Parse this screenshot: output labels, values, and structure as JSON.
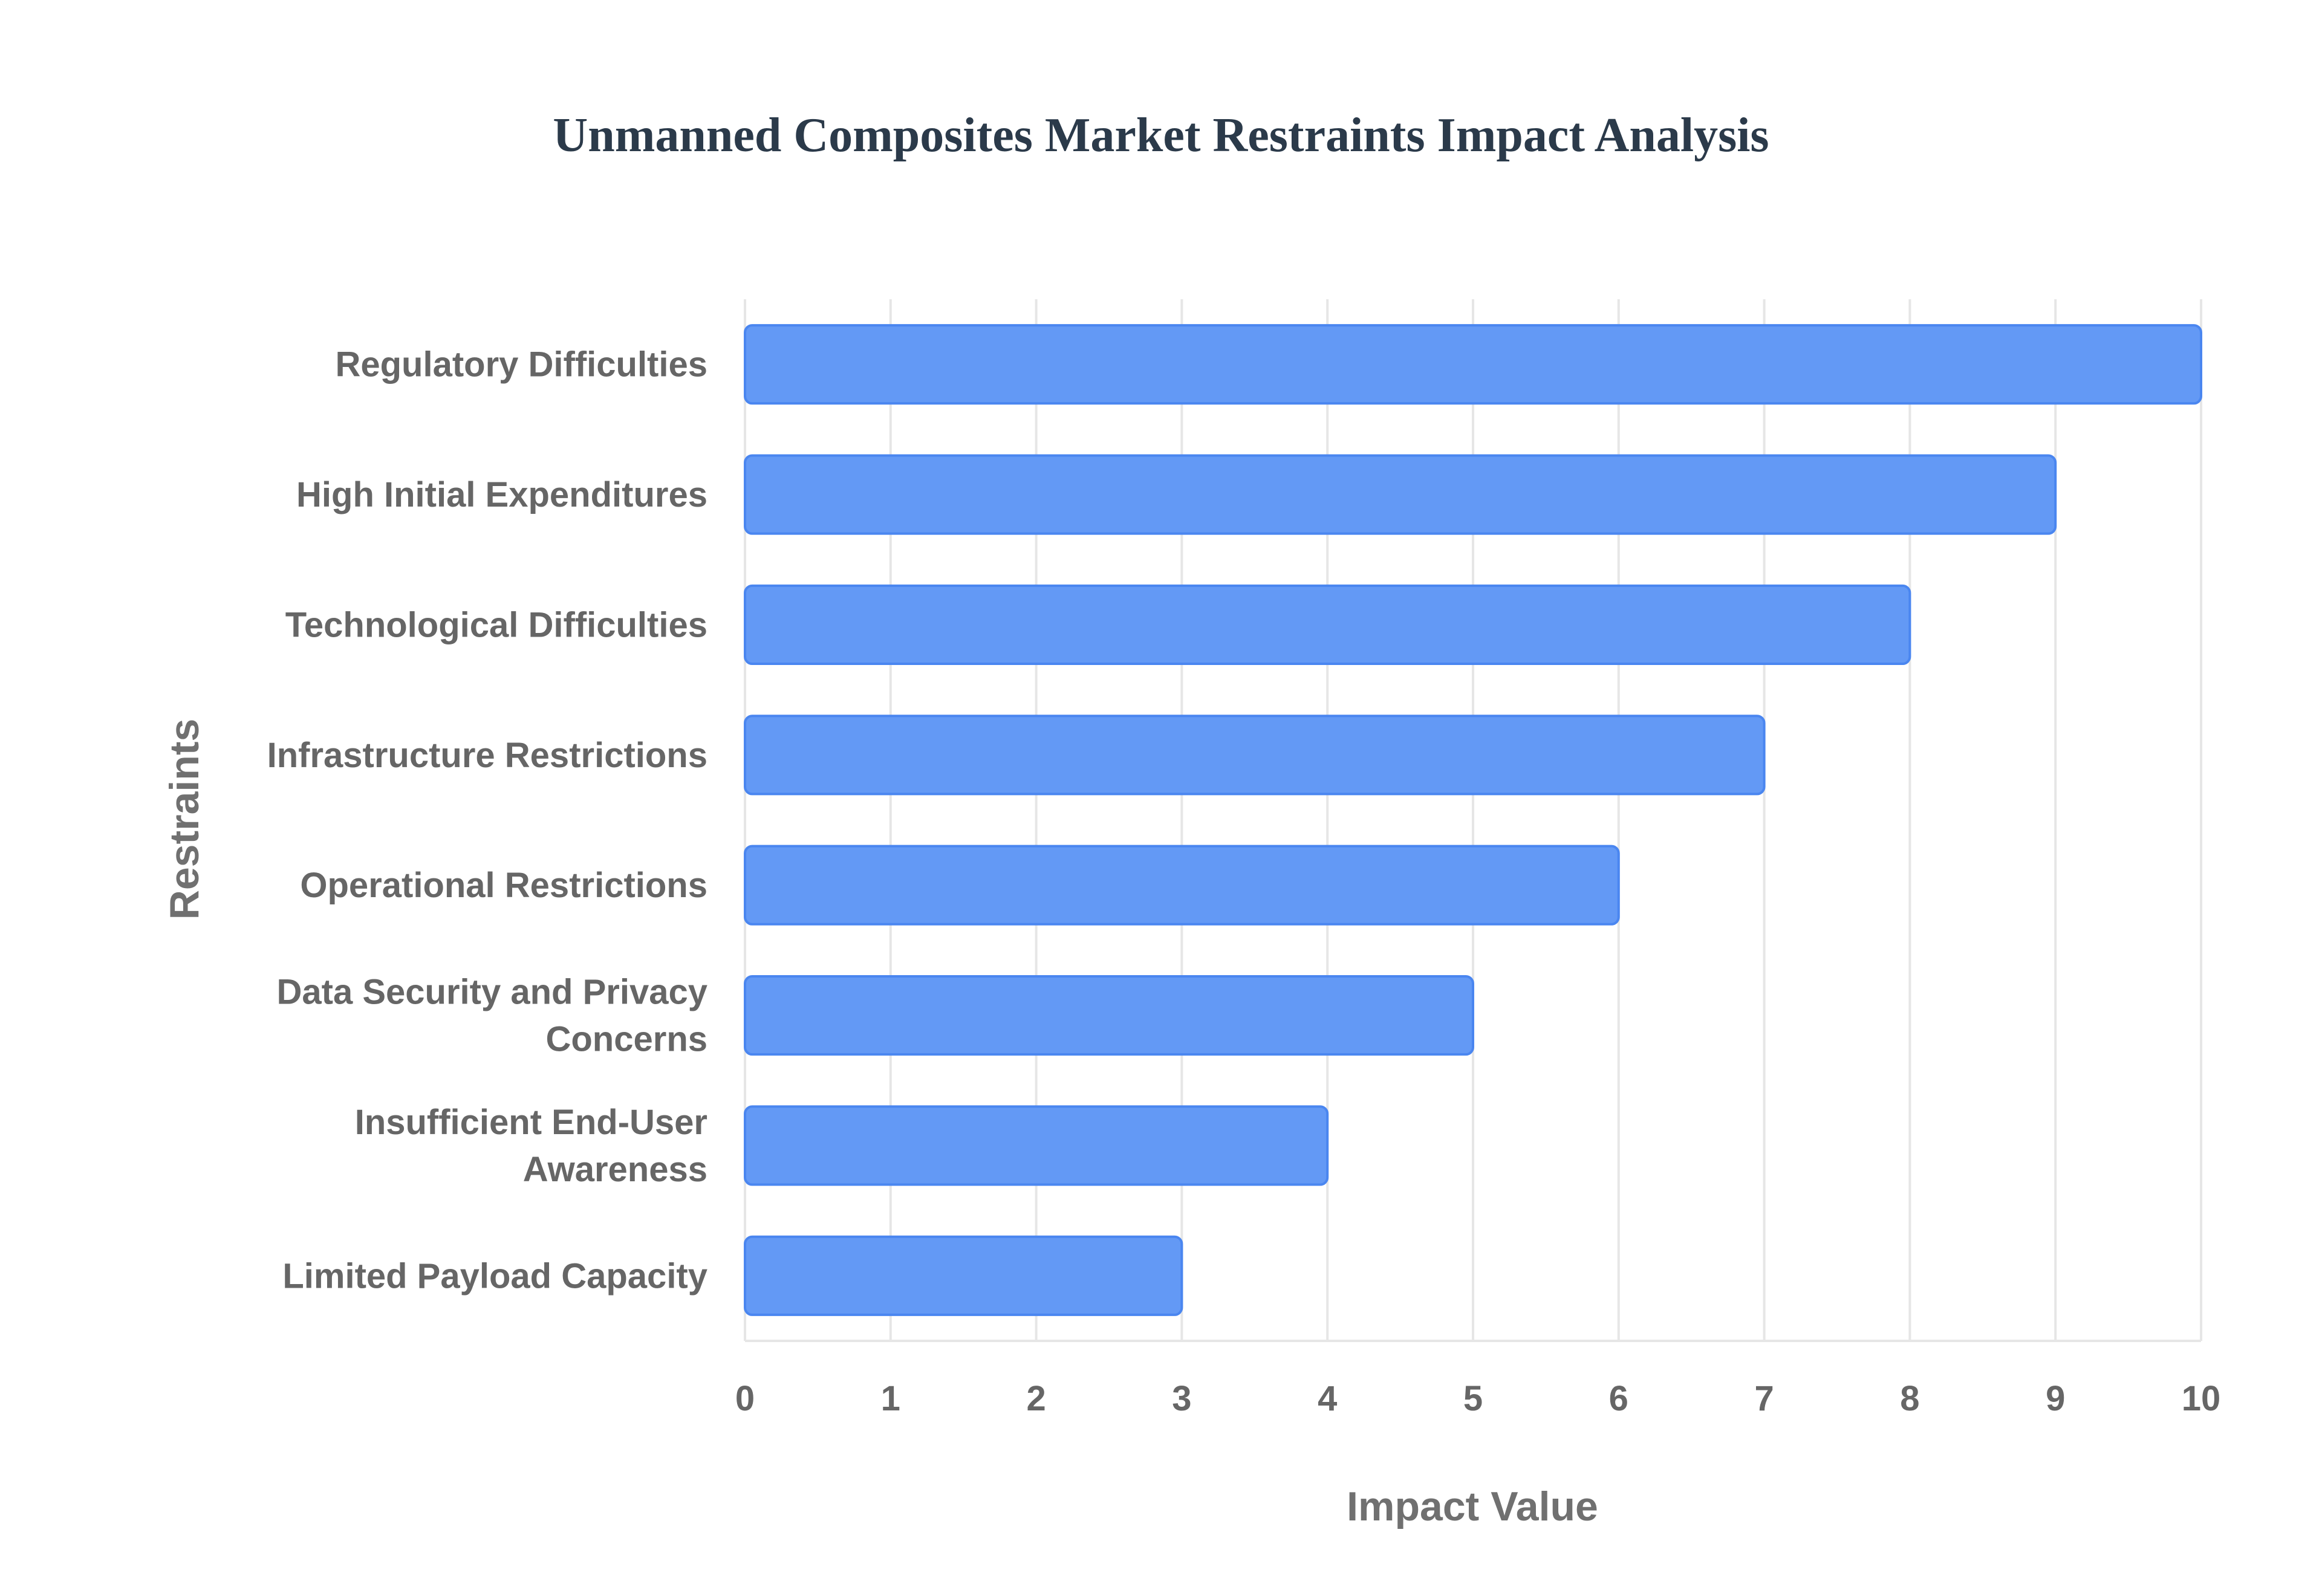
{
  "chart_data": {
    "type": "bar",
    "orientation": "horizontal",
    "title": "Unmanned Composites Market Restraints Impact Analysis",
    "xlabel": "Impact Value",
    "ylabel": "Restraints",
    "xlim": [
      0,
      10
    ],
    "x_ticks": [
      "0",
      "1",
      "2",
      "3",
      "4",
      "5",
      "6",
      "7",
      "8",
      "9",
      "10"
    ],
    "grid": true,
    "legend": "none",
    "bar_color": "#6399f5",
    "bar_edge_color": "#4a86f0",
    "categories": [
      [
        "Regulatory Difficulties"
      ],
      [
        "High Initial Expenditures"
      ],
      [
        "Technological Difficulties"
      ],
      [
        "Infrastructure Restrictions"
      ],
      [
        "Operational Restrictions"
      ],
      [
        "Data Security and Privacy",
        "Concerns"
      ],
      [
        "Insufficient End-User",
        "Awareness"
      ],
      [
        "Limited Payload Capacity"
      ]
    ],
    "values": [
      10,
      9,
      8,
      7,
      6,
      5,
      4,
      3
    ]
  }
}
